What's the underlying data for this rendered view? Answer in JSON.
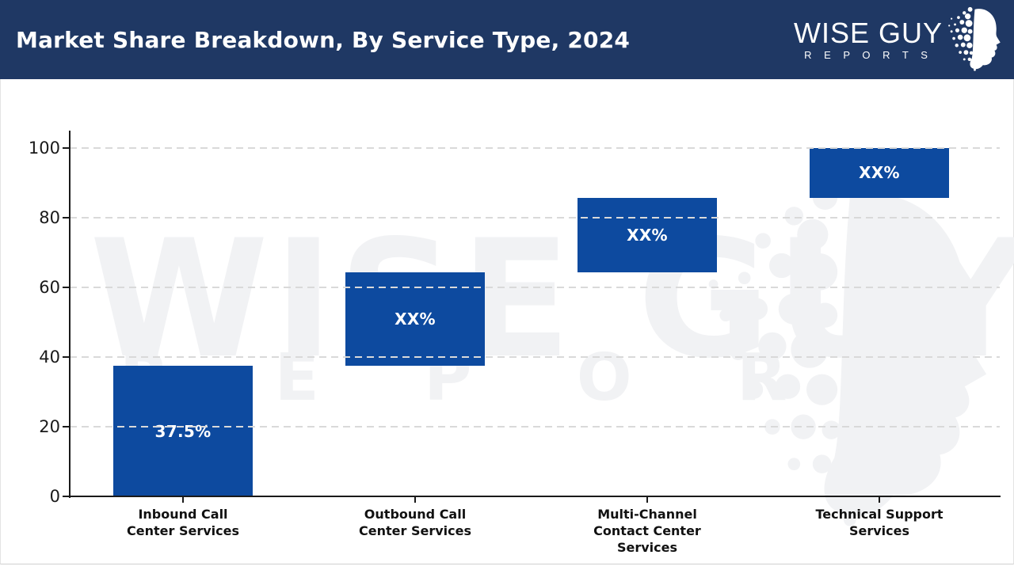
{
  "header": {
    "title": "Market Share Breakdown, By Service Type, 2024",
    "logo": {
      "name": "WISE GUY",
      "subtitle": "R E P O R T S"
    }
  },
  "watermark": {
    "line1": "WISE GUY",
    "line2": "R E P O R T S"
  },
  "chart_data": {
    "type": "bar",
    "subtype": "waterfall",
    "title": "Market Share Breakdown, By Service Type, 2024",
    "categories": [
      "Inbound Call\nCenter Services",
      "Outbound Call\nCenter Services",
      "Multi-Channel\nContact Center\nServices",
      "Technical Support\nServices"
    ],
    "bars": [
      {
        "label": "37.5%",
        "start": 0,
        "end": 37.5
      },
      {
        "label": "XX%",
        "start": 37.5,
        "end": 64.3
      },
      {
        "label": "XX%",
        "start": 64.4,
        "end": 85.7
      },
      {
        "label": "XX%",
        "start": 85.7,
        "end": 100
      }
    ],
    "ylim": [
      0,
      100
    ],
    "yticks": [
      0,
      20,
      40,
      60,
      80,
      100
    ],
    "grid": "horizontal-dashed",
    "legend": "none",
    "bar_color": "#0d4a9f",
    "bar_label_color": "#ffffff"
  },
  "colors": {
    "header_bg": "#1f3864",
    "bar": "#0d4a9f",
    "axis": "#1a1a1a",
    "gridline": "#d9d9d9",
    "watermark": "#f1f2f4",
    "background": "#ffffff"
  }
}
